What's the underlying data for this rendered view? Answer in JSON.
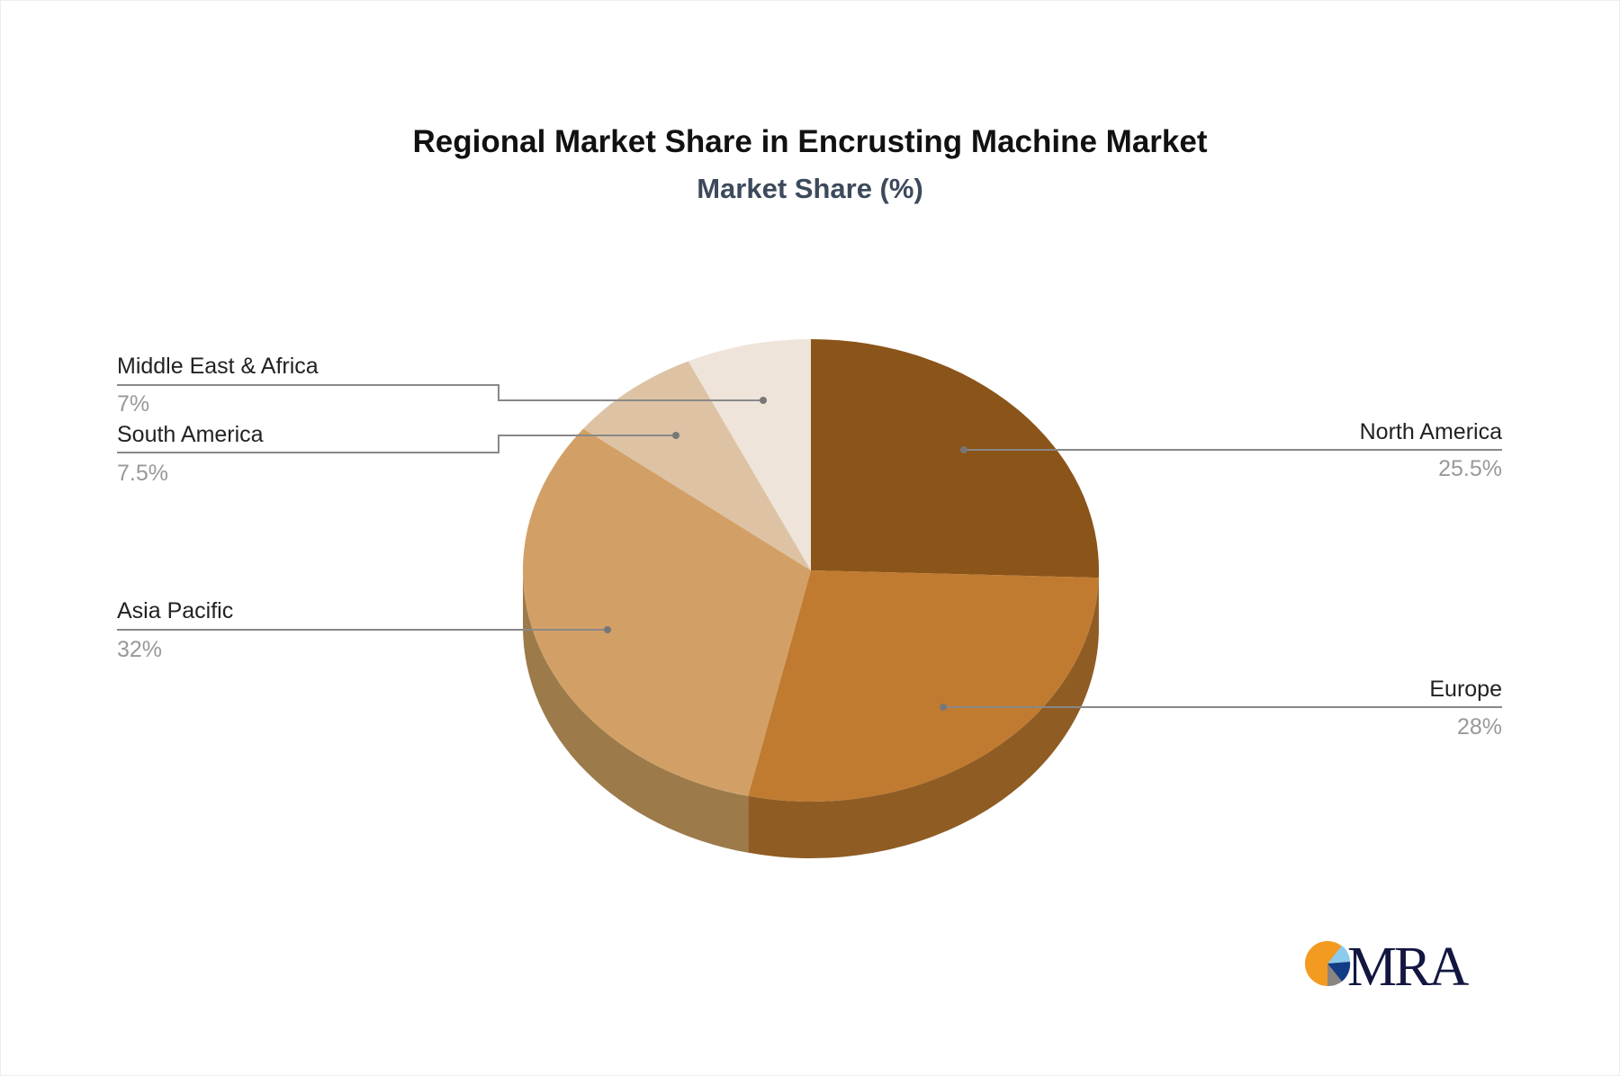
{
  "chart_data": {
    "type": "pie",
    "style": "3d",
    "title": "Regional Market Share in Encrusting Machine Market",
    "subtitle": "Market Share (%)",
    "slices": [
      {
        "label": "North America",
        "value": 25.5,
        "value_label": "25.5%",
        "color": "#8B5418",
        "side_color": "#6E4212"
      },
      {
        "label": "Europe",
        "value": 28,
        "value_label": "28%",
        "color": "#C07B30",
        "side_color": "#8F5C24"
      },
      {
        "label": "Asia Pacific",
        "value": 32,
        "value_label": "32%",
        "color": "#D2A066",
        "side_color": "#9C7A4A"
      },
      {
        "label": "South America",
        "value": 7.5,
        "value_label": "7.5%",
        "color": "#DDC3A4",
        "side_color": "#A89278"
      },
      {
        "label": "Middle East & Africa",
        "value": 7,
        "value_label": "7%",
        "color": "#EEE4DA",
        "side_color": "#B5ACA3"
      }
    ]
  },
  "logo": {
    "text": "MRA"
  }
}
